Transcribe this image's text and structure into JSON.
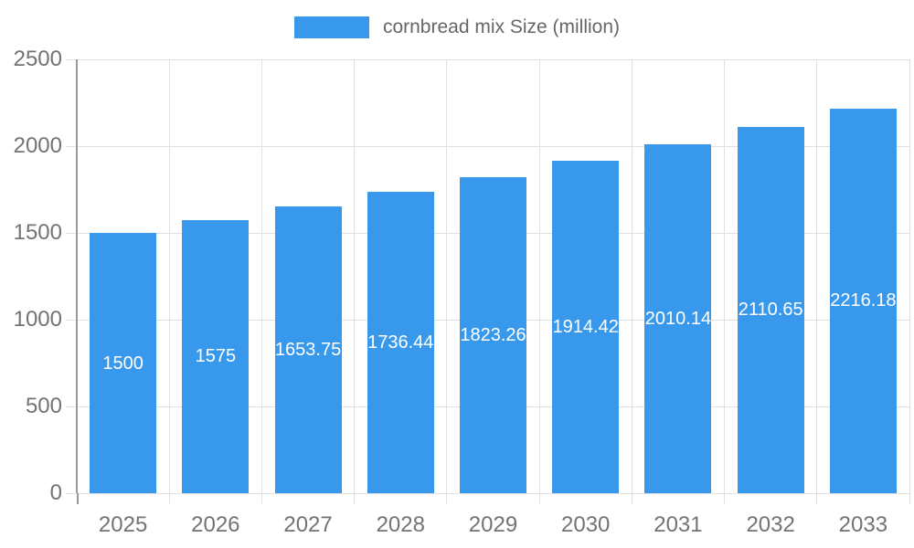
{
  "chart_data": {
    "type": "bar",
    "title": "cornbread mix Size (million)",
    "legend_position": "top",
    "grid": true,
    "categories": [
      "2025",
      "2026",
      "2027",
      "2028",
      "2029",
      "2030",
      "2031",
      "2032",
      "2033"
    ],
    "values": [
      1500,
      1575,
      1653.75,
      1736.44,
      1823.26,
      1914.42,
      2010.14,
      2110.65,
      2216.18
    ],
    "value_labels": [
      "1500",
      "1575",
      "1653.75",
      "1736.44",
      "1823.26",
      "1914.42",
      "2010.14",
      "2110.65",
      "2216.18"
    ],
    "xlabel": "",
    "ylabel": "",
    "ylim": [
      0,
      2500
    ],
    "ytick_labels": [
      "0",
      "500",
      "1000",
      "1500",
      "2000",
      "2500"
    ],
    "ytick_values": [
      0,
      500,
      1000,
      1500,
      2000,
      2500
    ]
  },
  "colors": {
    "bar": "#3899EC",
    "grid": "#E0E0E0",
    "axis_line": "#999999",
    "tick_text": "#737373",
    "legend_text": "#666666",
    "value_label_text": "#FFFFFF",
    "background": "#FFFFFF"
  }
}
